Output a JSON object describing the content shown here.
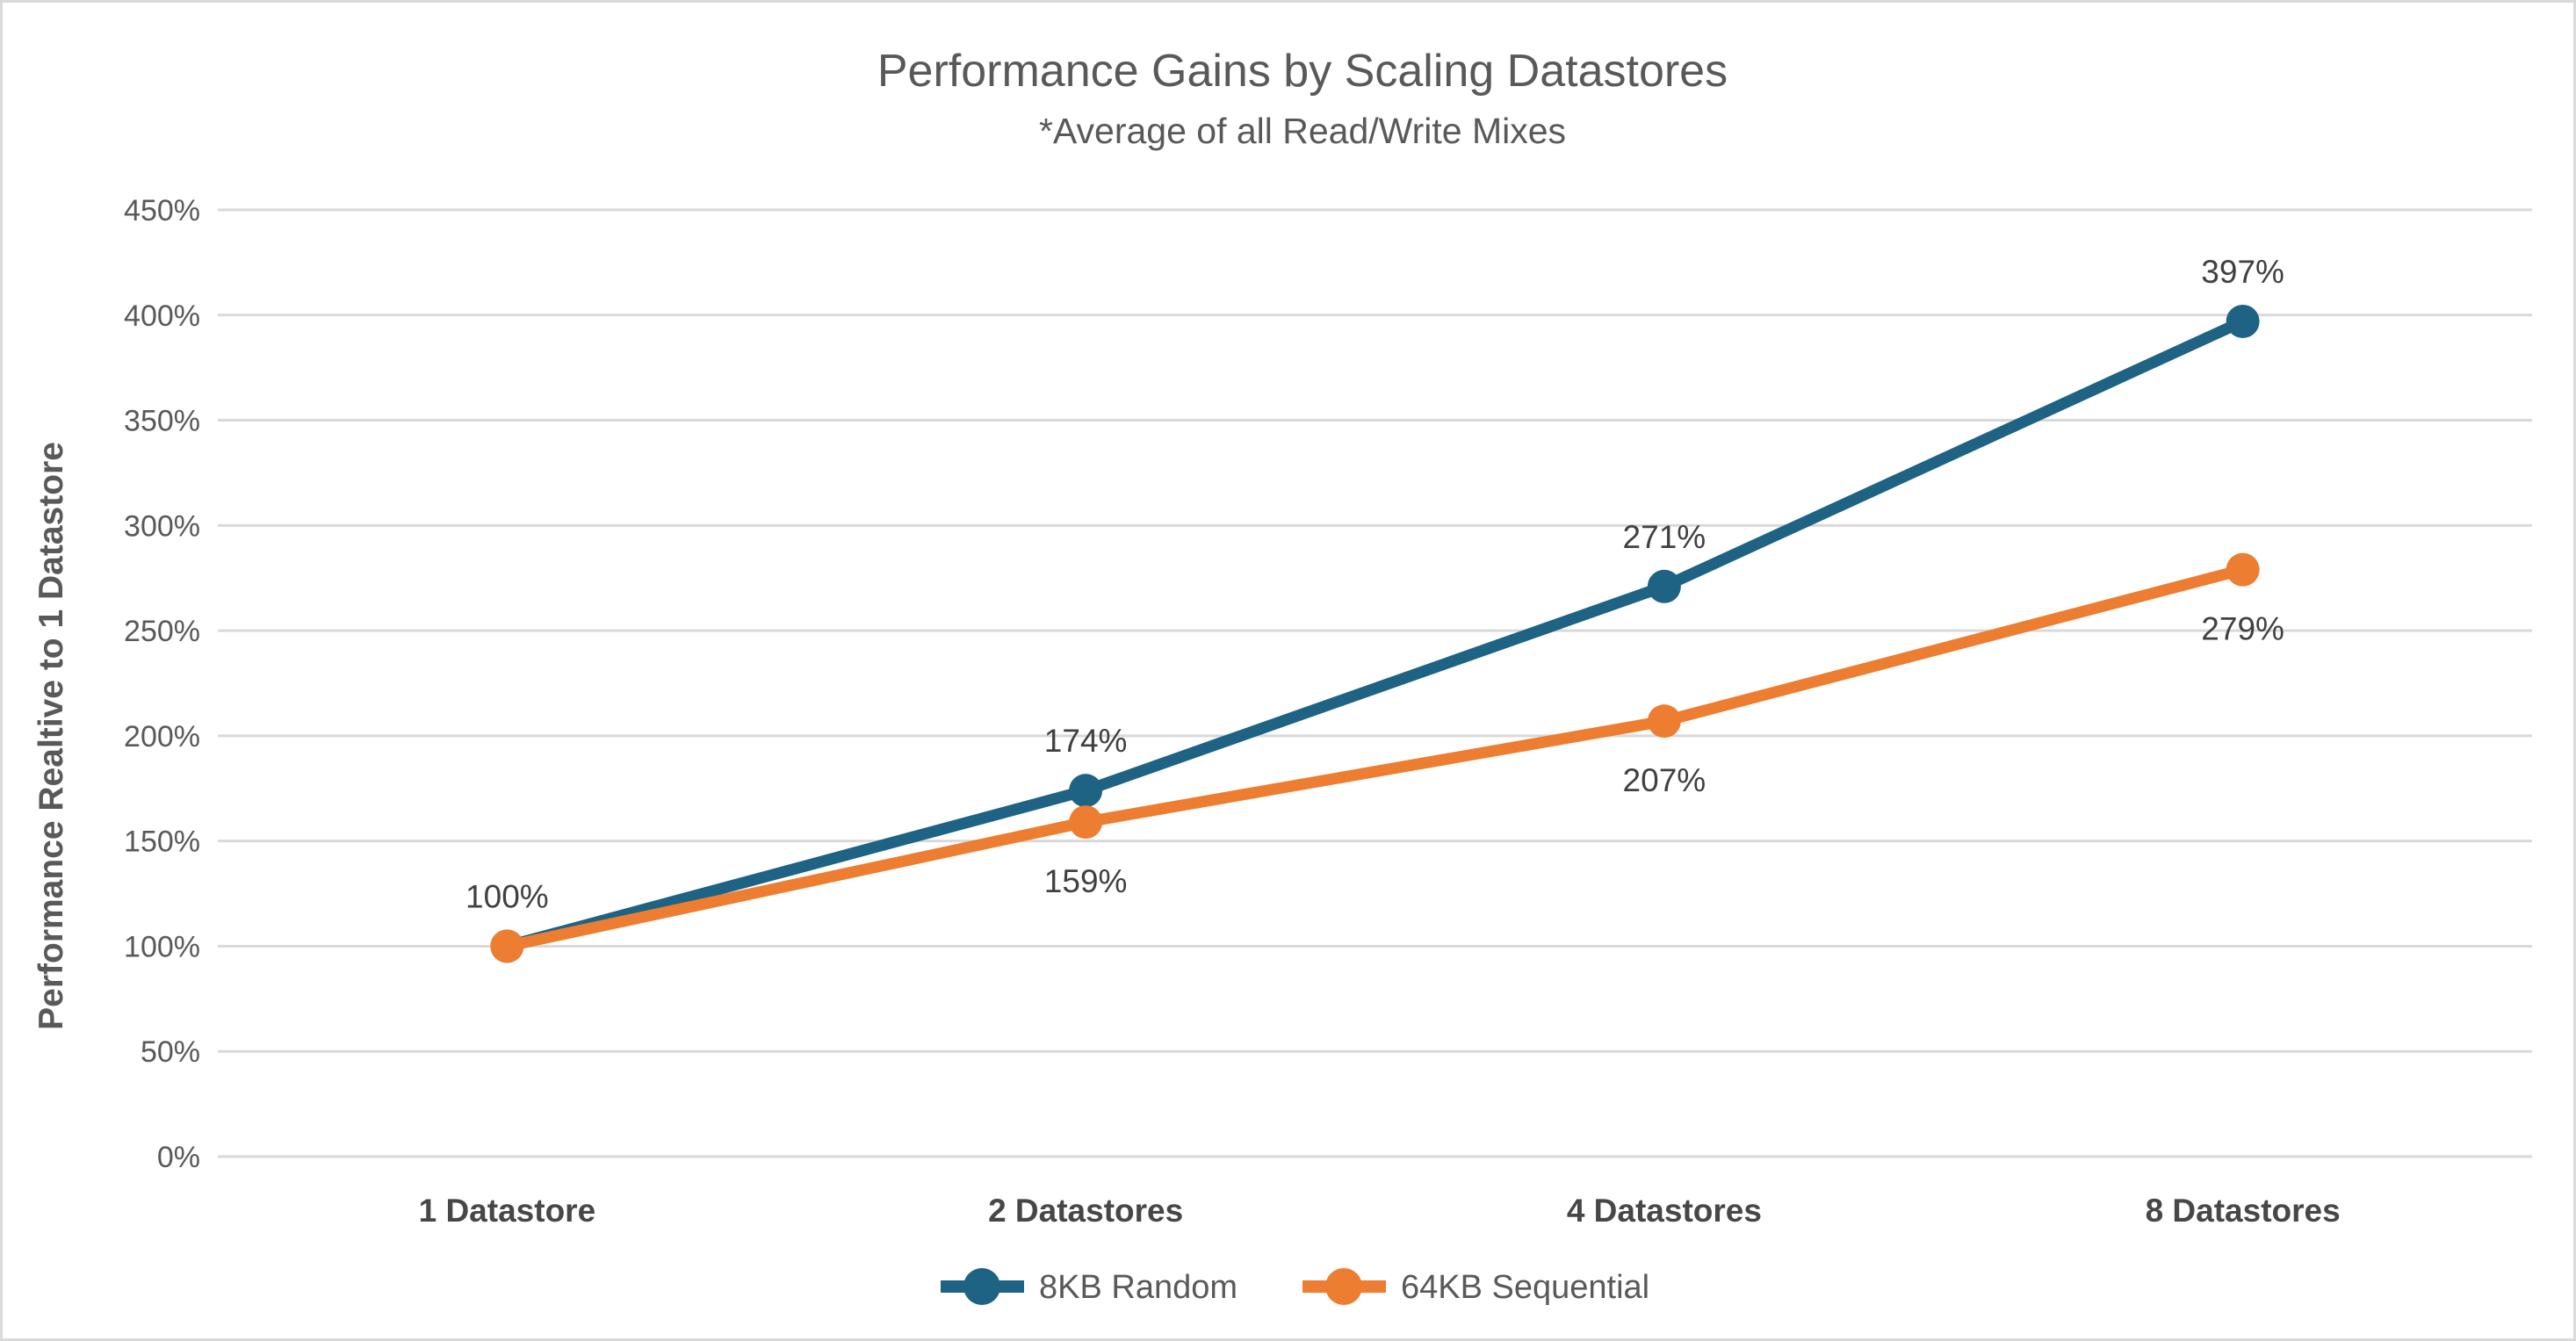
{
  "window": {
    "background_color": "#FFFFFF",
    "border_color": "#D9D9D9"
  },
  "chart_data": {
    "type": "line",
    "title": "Performance Gains by Scaling Datastores",
    "subtitle": "*Average of all Read/Write Mixes",
    "xlabel": "",
    "ylabel": "Performance Realtive to 1 Datastore",
    "categories": [
      "1 Datastore",
      "2 Datastores",
      "4 Datastores",
      "8 Datastores"
    ],
    "series": [
      {
        "name": "8KB Random",
        "color": "#1F6384",
        "values": [
          100,
          174,
          271,
          397
        ],
        "data_labels": [
          "",
          "174%",
          "271%",
          "397%"
        ],
        "label_position": "above"
      },
      {
        "name": "64KB Sequential",
        "color": "#ED7D31",
        "values": [
          100,
          159,
          207,
          279
        ],
        "data_labels": [
          "100%",
          "159%",
          "207%",
          "279%"
        ],
        "label_position": "below",
        "label_position_overrides": {
          "0": "above"
        }
      }
    ],
    "ylim": [
      0,
      450
    ],
    "ytick_step": 50,
    "ytick_labels": [
      "0%",
      "50%",
      "100%",
      "150%",
      "200%",
      "250%",
      "300%",
      "350%",
      "400%",
      "450%"
    ],
    "grid": "horizontal-only",
    "gridline_color": "#D9D9D9",
    "legend_position": "bottom-center",
    "legend": [
      "8KB Random",
      "64KB Sequential"
    ]
  },
  "colors": {
    "series_blue": "#1F6384",
    "series_orange": "#ED7D31",
    "gridline": "#D9D9D9",
    "title_text": "#595959",
    "tick_text": "#595959",
    "category_text": "#474747",
    "data_label_text": "#404040"
  }
}
